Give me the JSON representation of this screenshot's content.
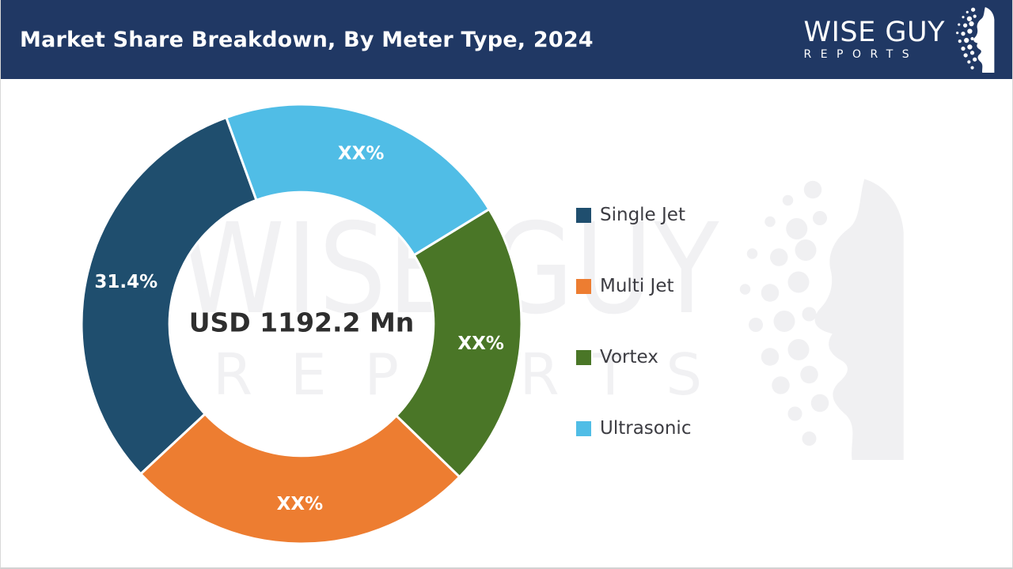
{
  "page": {
    "background": "#ffffff",
    "border_color": "#d8d8d8"
  },
  "header": {
    "title": "Market Share Breakdown, By Meter Type, 2024",
    "bg_color": "#203864",
    "text_color": "#ffffff",
    "logo": {
      "name": "WISE GUY",
      "sub": "REPORTS"
    }
  },
  "watermark": {
    "name": "WISE GUY",
    "sub": "REPORTS"
  },
  "chart_data": {
    "type": "pie",
    "variant": "donut",
    "title": "Market Share Breakdown, By Meter Type, 2024",
    "center_label": "USD 1192.2 Mn",
    "start_angle_deg": 110,
    "counterclockwise": true,
    "inner_radius_frac": 0.6,
    "legend_position": "right",
    "slices": [
      {
        "name": "Single Jet",
        "value_pct": 31.4,
        "label": "31.4%",
        "color": "#1f4e6e"
      },
      {
        "name": "Multi Jet",
        "value_pct": 25.8,
        "label": "XX%",
        "color": "#ed7d31"
      },
      {
        "name": "Vortex",
        "value_pct": 21.0,
        "label": "XX%",
        "color": "#4a7627"
      },
      {
        "name": "Ultrasonic",
        "value_pct": 21.8,
        "label": "XX%",
        "color": "#50bde6"
      }
    ]
  }
}
